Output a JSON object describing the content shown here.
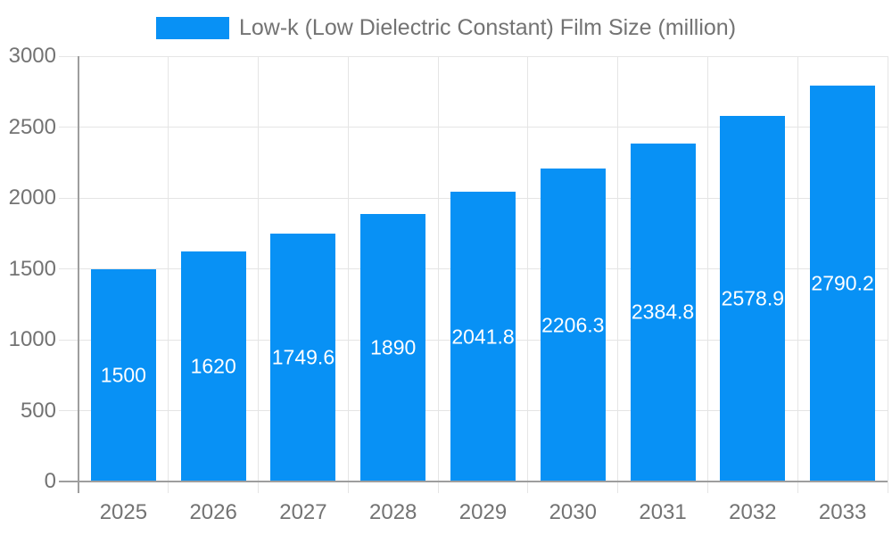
{
  "chart_data": {
    "type": "bar",
    "title": "Low-k (Low Dielectric Constant) Film Size (million)",
    "categories": [
      "2025",
      "2026",
      "2027",
      "2028",
      "2029",
      "2030",
      "2031",
      "2032",
      "2033"
    ],
    "series": [
      {
        "name": "Low-k (Low Dielectric Constant) Film Size (million)",
        "values": [
          1500,
          1620,
          1749.6,
          1890,
          2041.8,
          2206.3,
          2384.8,
          2578.9,
          2790.2
        ]
      }
    ],
    "value_labels": [
      "1500",
      "1620",
      "1749.6",
      "1890",
      "2041.8",
      "2206.3",
      "2384.8",
      "2578.9",
      "2790.2"
    ],
    "xlabel": "",
    "ylabel": "",
    "ylim": [
      0,
      3000
    ],
    "yticks": [
      0,
      500,
      1000,
      1500,
      2000,
      2500,
      3000
    ],
    "ytick_labels": [
      "0",
      "500",
      "1000",
      "1500",
      "2000",
      "2500",
      "3000"
    ],
    "grid": true,
    "legend_position": "top",
    "colors": {
      "bar": "#0891f5",
      "grid": "#e5e5e5",
      "axis": "#9e9e9e",
      "text": "#737373",
      "value_label": "#ffffff",
      "background": "#ffffff"
    }
  }
}
